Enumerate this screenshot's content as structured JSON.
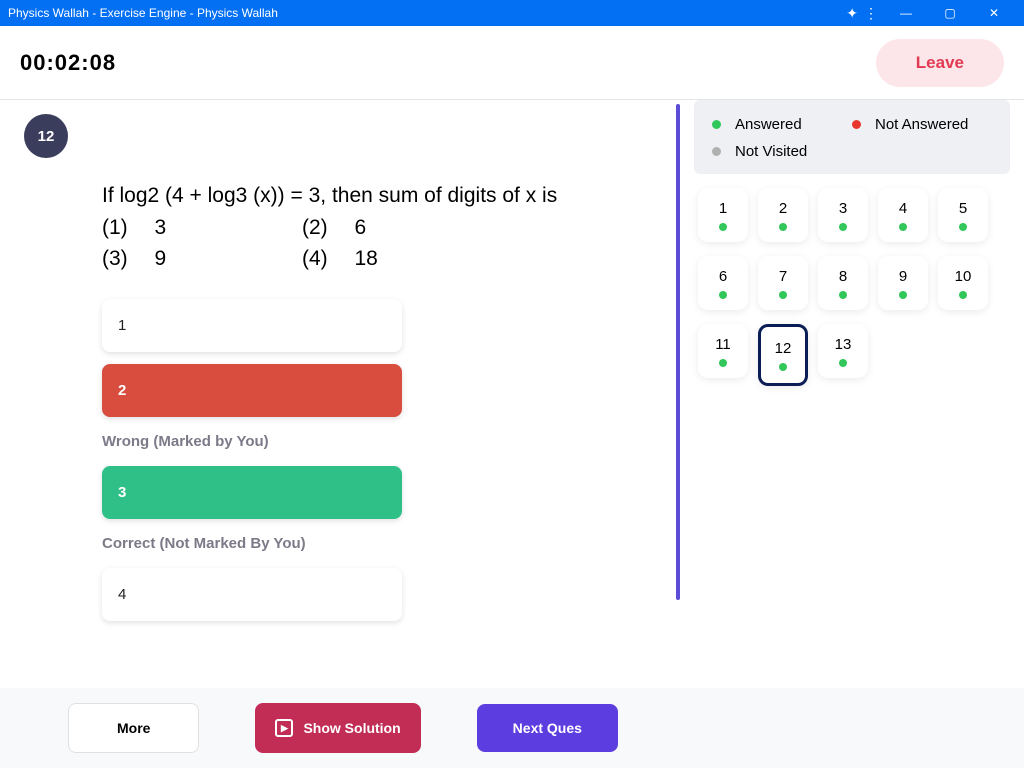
{
  "window": {
    "title": "Physics Wallah - Exercise Engine - Physics Wallah"
  },
  "header": {
    "timer": "00:02:08",
    "leave_label": "Leave"
  },
  "question": {
    "number": "12",
    "text": "If log2 (4 + log3 (x)) = 3, then sum of digits of x is",
    "opt1": "(1)  3",
    "opt2": "(2)  6",
    "opt3": "(3)  9",
    "opt4": "(4)  18"
  },
  "answers": {
    "a1": "1",
    "a2": "2",
    "a3": "3",
    "a4": "4",
    "wrong_label": "Wrong (Marked by You)",
    "correct_label": "Correct (Not Marked By You)"
  },
  "legend": {
    "answered": "Answered",
    "not_answered": "Not Answered",
    "not_visited": "Not Visited"
  },
  "palette": [
    {
      "n": "1",
      "s": "green"
    },
    {
      "n": "2",
      "s": "green"
    },
    {
      "n": "3",
      "s": "green"
    },
    {
      "n": "4",
      "s": "green"
    },
    {
      "n": "5",
      "s": "green"
    },
    {
      "n": "6",
      "s": "green"
    },
    {
      "n": "7",
      "s": "green"
    },
    {
      "n": "8",
      "s": "green"
    },
    {
      "n": "9",
      "s": "green"
    },
    {
      "n": "10",
      "s": "green"
    },
    {
      "n": "11",
      "s": "green"
    },
    {
      "n": "12",
      "s": "green",
      "current": true
    },
    {
      "n": "13",
      "s": "green"
    }
  ],
  "footer": {
    "more": "More",
    "show_solution": "Show Solution",
    "next": "Next Ques"
  },
  "colors": {
    "green": "#32c75a",
    "red": "#e8362d",
    "gray": "#b0b0b0"
  }
}
